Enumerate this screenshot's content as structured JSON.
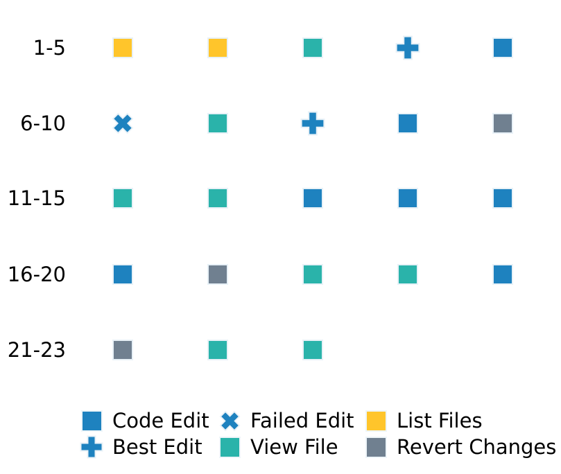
{
  "figure": {
    "background_color": "#ffffff",
    "text_color": "#000000",
    "marker_halo_color": "#e8f1f7"
  },
  "chart_data": {
    "type": "scatter",
    "title": "",
    "xlabel": "",
    "ylabel": "",
    "grid": false,
    "legend_position": "bottom-center",
    "x_axis": {
      "tick_labels_visible": false,
      "positions": [
        1,
        2,
        3,
        4,
        5
      ]
    },
    "y_axis": {
      "tick_labels_visible": true,
      "categories": [
        "1-5",
        "6-10",
        "11-15",
        "16-20",
        "21-23"
      ]
    },
    "marker_styles": {
      "Code Edit": {
        "shape": "square",
        "color": "#1e82bf"
      },
      "Failed Edit": {
        "shape": "x",
        "color": "#1e82bf"
      },
      "List Files": {
        "shape": "square",
        "color": "#ffc52b"
      },
      "Best Edit": {
        "shape": "plus",
        "color": "#1e82bf"
      },
      "View File": {
        "shape": "square",
        "color": "#2ab3aa"
      },
      "Revert Changes": {
        "shape": "square",
        "color": "#708090"
      }
    },
    "rows": [
      {
        "label": "1-5",
        "actions": [
          "List Files",
          "List Files",
          "View File",
          "Best Edit",
          "Code Edit"
        ]
      },
      {
        "label": "6-10",
        "actions": [
          "Failed Edit",
          "View File",
          "Best Edit",
          "Code Edit",
          "Revert Changes"
        ]
      },
      {
        "label": "11-15",
        "actions": [
          "View File",
          "View File",
          "Code Edit",
          "Code Edit",
          "Code Edit"
        ]
      },
      {
        "label": "16-20",
        "actions": [
          "Code Edit",
          "Revert Changes",
          "View File",
          "View File",
          "Code Edit"
        ]
      },
      {
        "label": "21-23",
        "actions": [
          "Revert Changes",
          "View File",
          "View File"
        ]
      }
    ],
    "legend_rows": [
      [
        "Code Edit",
        "Failed Edit",
        "List Files"
      ],
      [
        "Best Edit",
        "View File",
        "Revert Changes"
      ]
    ]
  }
}
